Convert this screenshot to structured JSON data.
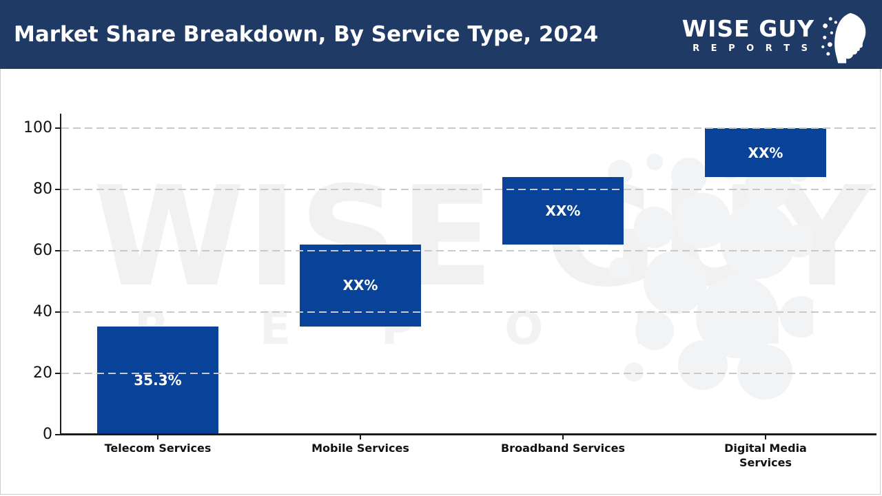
{
  "header": {
    "title": "Market Share Breakdown, By Service Type, 2024",
    "logo_line1": "WISE GUY",
    "logo_line2": "R E P O R T S"
  },
  "watermark": {
    "line1": "WISE GUY",
    "line2": "R E P O R T S"
  },
  "chart_data": {
    "type": "bar",
    "subtype": "floating-waterfall",
    "title": "Market Share Breakdown, By Service Type, 2024",
    "categories": [
      "Telecom Services",
      "Mobile Services",
      "Broadband Services",
      "Digital Media Services"
    ],
    "category_lines": [
      [
        "Telecom Services"
      ],
      [
        "Mobile Services"
      ],
      [
        "Broadband Services"
      ],
      [
        "Digital Media",
        "Services"
      ]
    ],
    "segments": [
      {
        "category": "Telecom Services",
        "start": 0,
        "end": 35.3,
        "label": "35.3%"
      },
      {
        "category": "Mobile Services",
        "start": 35.3,
        "end": 62,
        "label": "XX%"
      },
      {
        "category": "Broadband Services",
        "start": 62,
        "end": 84,
        "label": "XX%"
      },
      {
        "category": "Digital Media Services",
        "start": 84,
        "end": 100,
        "label": "XX%"
      }
    ],
    "xlabel": "",
    "ylabel": "",
    "yticks": [
      0,
      20,
      40,
      60,
      80,
      100
    ],
    "ylim": [
      0,
      104
    ],
    "grid": {
      "axis": "y",
      "style": "dashed",
      "color": "#c9c9c9"
    },
    "legend": "none",
    "bar_color": "#084299",
    "bar_label_color": "#ffffff"
  },
  "colors": {
    "header_bg": "#203A66",
    "title_text": "#ffffff",
    "bar": "#084299",
    "axis": "#1a1a1a",
    "grid": "#c9c9c9",
    "frame_border": "#cccccc",
    "watermark": "#f1f1f1"
  }
}
